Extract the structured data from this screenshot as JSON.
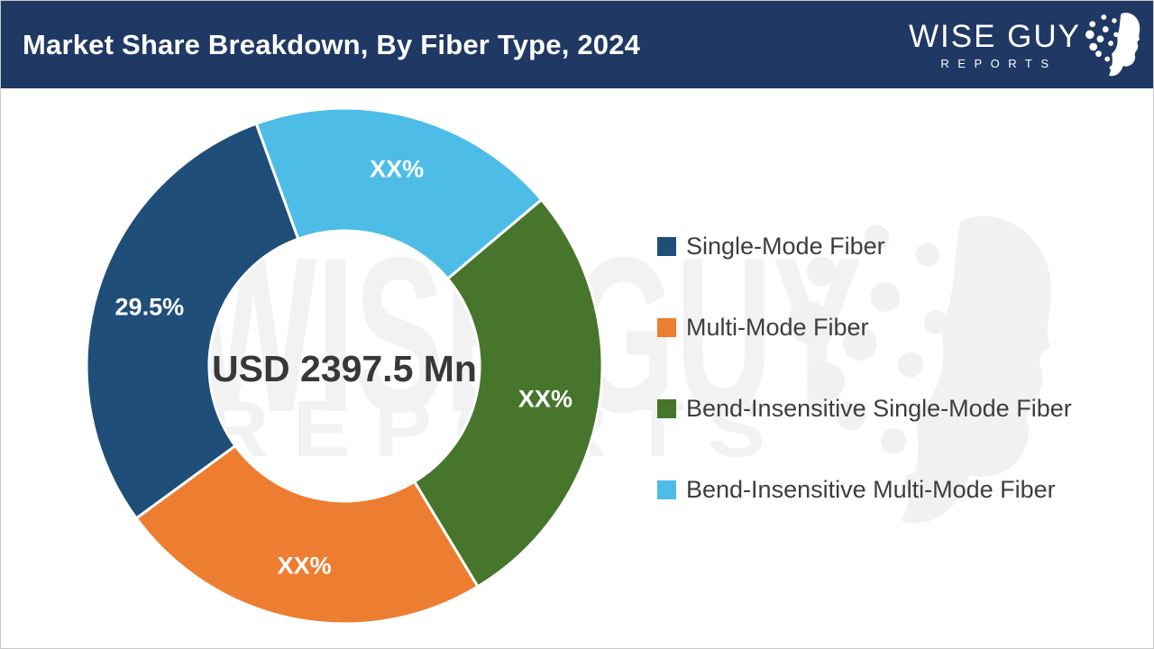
{
  "header": {
    "title": "Market Share Breakdown, By Fiber Type, 2024",
    "bg_color": "#1f3864",
    "logo": {
      "line1": "WISE GUY",
      "line2": "REPORTS"
    }
  },
  "watermark": {
    "line1": "WISE GUY",
    "line2": "R E P O R T S"
  },
  "chart_data": {
    "type": "pie",
    "donut": true,
    "title": "Market Share Breakdown, By Fiber Type, 2024",
    "center_label": "USD 2397.5 Mn",
    "start_angle_deg": 340,
    "legend_position": "right",
    "segments": [
      {
        "name": "Single-Mode Fiber",
        "display_label": "29.5%",
        "share_pct": 29.5,
        "color": "#1f4e79"
      },
      {
        "name": "Multi-Mode Fiber",
        "display_label": "XX%",
        "share_pct": 23.6,
        "color": "#ed7d31"
      },
      {
        "name": "Bend-Insensitive Single-Mode Fiber",
        "display_label": "XX%",
        "share_pct": 27.5,
        "color": "#46752b"
      },
      {
        "name": "Bend-Insensitive Multi-Mode Fiber",
        "display_label": "XX%",
        "share_pct": 19.4,
        "color": "#4dbde8"
      }
    ]
  }
}
